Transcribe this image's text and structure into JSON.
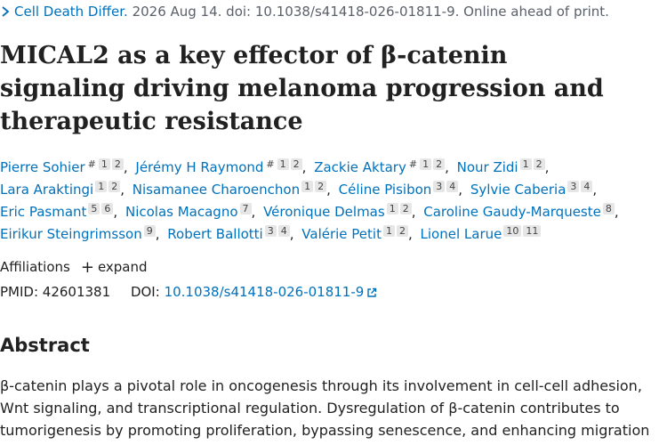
{
  "citation": {
    "journal": "Cell Death Differ.",
    "details": "2026 Aug 14. doi: 10.1038/s41418-026-01811-9. Online ahead of print."
  },
  "title": "MICAL2 as a key effector of β-catenin signaling driving melanoma progression and therapeutic resistance",
  "authors": [
    {
      "name": "Pierre Sohier",
      "sups": [
        "#",
        "1",
        "2"
      ]
    },
    {
      "name": "Jérémy H Raymond",
      "sups": [
        "#",
        "1",
        "2"
      ]
    },
    {
      "name": "Zackie Aktary",
      "sups": [
        "#",
        "1",
        "2"
      ]
    },
    {
      "name": "Nour Zidi",
      "sups": [
        "1",
        "2"
      ]
    },
    {
      "name": "Lara Araktingi",
      "sups": [
        "1",
        "2"
      ]
    },
    {
      "name": "Nisamanee Charoenchon",
      "sups": [
        "1",
        "2"
      ]
    },
    {
      "name": "Céline Pisibon",
      "sups": [
        "3",
        "4"
      ]
    },
    {
      "name": "Sylvie Caberia",
      "sups": [
        "3",
        "4"
      ]
    },
    {
      "name": "Eric Pasmant",
      "sups": [
        "5",
        "6"
      ]
    },
    {
      "name": "Nicolas Macagno",
      "sups": [
        "7"
      ]
    },
    {
      "name": "Véronique Delmas",
      "sups": [
        "1",
        "2"
      ]
    },
    {
      "name": "Caroline Gaudy-Marqueste",
      "sups": [
        "8"
      ]
    },
    {
      "name": "Eirikur Steingrimsson",
      "sups": [
        "9"
      ]
    },
    {
      "name": "Robert Ballotti",
      "sups": [
        "3",
        "4"
      ]
    },
    {
      "name": "Valérie Petit",
      "sups": [
        "1",
        "2"
      ]
    },
    {
      "name": "Lionel Larue",
      "sups": [
        "10",
        "11"
      ]
    }
  ],
  "affiliations": {
    "label": "Affiliations",
    "toggle": "expand"
  },
  "identifiers": {
    "pmid_label": "PMID:",
    "pmid": "42601381",
    "doi_label": "DOI:",
    "doi": "10.1038/s41418-026-01811-9"
  },
  "abstract": {
    "heading": "Abstract",
    "text": "β-catenin plays a pivotal role in oncogenesis through its involvement in cell-cell adhesion, Wnt signaling, and transcriptional regulation. Dysregulation of β-catenin contributes to tumorigenesis by promoting proliferation, bypassing senescence, and enhancing migration and invasion. In melanoma,"
  }
}
